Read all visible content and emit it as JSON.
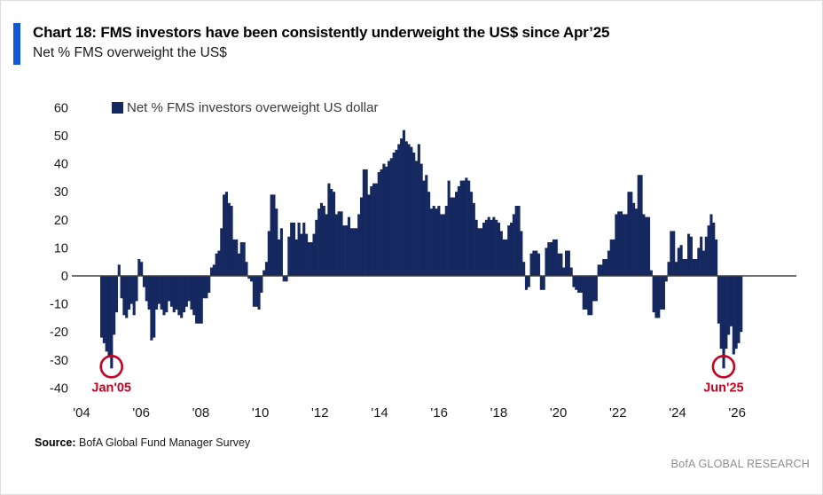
{
  "header": {
    "title": "Chart 18: FMS investors have been consistently underweight the US$ since Apr’25",
    "subtitle": "Net % FMS overweight the US$"
  },
  "legend": {
    "label": "Net % FMS investors overweight US dollar"
  },
  "footer": {
    "source_label": "Source:",
    "source_text": " BofA Global Fund Manager Survey",
    "brand": "BofA GLOBAL RESEARCH"
  },
  "colors": {
    "bar": "#15285f",
    "accent_bar": "#1159d4",
    "annotation_red": "#c00421",
    "zero_line": "#3f3f3f",
    "tick_text": "#1a1a1a",
    "brand_gray": "#8f8f8f"
  },
  "chart_data": {
    "type": "bar",
    "title": "Net % FMS overweight the US$",
    "series_name": "Net % FMS investors overweight US dollar",
    "frequency": "monthly",
    "x_start_month": "2004-09",
    "x_end_month": "2026-01",
    "ylim": [
      -40,
      60
    ],
    "grid": false,
    "legend_position": "top-left",
    "y_ticks": [
      60,
      50,
      40,
      30,
      20,
      10,
      0,
      -10,
      -20,
      -30,
      -40
    ],
    "x_tick_labels": [
      "'04",
      "'06",
      "'08",
      "'10",
      "'12",
      "'14",
      "'16",
      "'18",
      "'20",
      "'22",
      "'24",
      "'26"
    ],
    "values": [
      -22,
      -24,
      -27,
      -29,
      -33,
      -21,
      -13,
      4,
      -8,
      -14,
      -15,
      -12,
      -10,
      -14,
      -9,
      6,
      5,
      -4,
      -9,
      -12,
      -23,
      -22,
      -12,
      -10,
      -12,
      -14,
      -13,
      -9,
      -11,
      -13,
      -12,
      -14,
      -15,
      -13,
      -11,
      -9,
      -12,
      -14,
      -17,
      -17,
      -17,
      -8,
      -8,
      -6,
      3,
      4,
      8,
      9,
      17,
      29,
      30,
      26,
      25,
      13,
      13,
      8,
      12,
      12,
      5,
      -1,
      -2,
      -11,
      -11,
      -12,
      -6,
      2,
      5,
      16,
      29,
      29,
      24,
      13,
      17,
      -2,
      -2,
      14,
      19,
      19,
      13,
      19,
      15,
      19,
      15,
      12,
      12,
      15,
      20,
      24,
      26,
      25,
      22,
      33,
      31,
      30,
      22,
      23,
      23,
      18,
      18,
      21,
      17,
      17,
      17,
      22,
      28,
      38,
      38,
      29,
      32,
      33,
      33,
      37,
      38,
      40,
      39,
      41,
      42,
      44,
      45,
      47,
      49,
      52,
      48,
      47,
      46,
      44,
      41,
      47,
      40,
      34,
      36,
      30,
      24,
      25,
      24,
      25,
      22,
      22,
      25,
      34,
      28,
      28,
      30,
      32,
      34,
      34,
      35,
      34,
      30,
      26,
      20,
      17,
      17,
      19,
      20,
      21,
      20,
      21,
      20,
      19,
      16,
      13,
      13,
      18,
      19,
      22,
      25,
      25,
      16,
      5,
      -5,
      -4,
      8,
      9,
      9,
      8,
      -5,
      -5,
      10,
      12,
      12,
      13,
      13,
      8,
      8,
      3,
      9,
      9,
      3,
      -4,
      -5,
      -6,
      -6,
      -12,
      -12,
      -14,
      -14,
      -9,
      -9,
      4,
      4,
      6,
      6,
      9,
      13,
      13,
      22,
      23,
      23,
      22,
      22,
      30,
      30,
      26,
      24,
      36,
      36,
      22,
      21,
      21,
      2,
      -13,
      -15,
      -15,
      -12,
      -12,
      -2,
      5,
      16,
      16,
      5,
      10,
      11,
      6,
      6,
      15,
      14,
      6,
      6,
      10,
      14,
      9,
      14,
      18,
      22,
      19,
      13,
      -17,
      -26,
      -33,
      -26,
      -21,
      -18,
      -28,
      -26,
      -24,
      -20
    ],
    "annotations": [
      {
        "label": "Jan'05",
        "index": 4,
        "value": -33
      },
      {
        "label": "Jun'25",
        "index": 249,
        "value": -33
      }
    ]
  }
}
